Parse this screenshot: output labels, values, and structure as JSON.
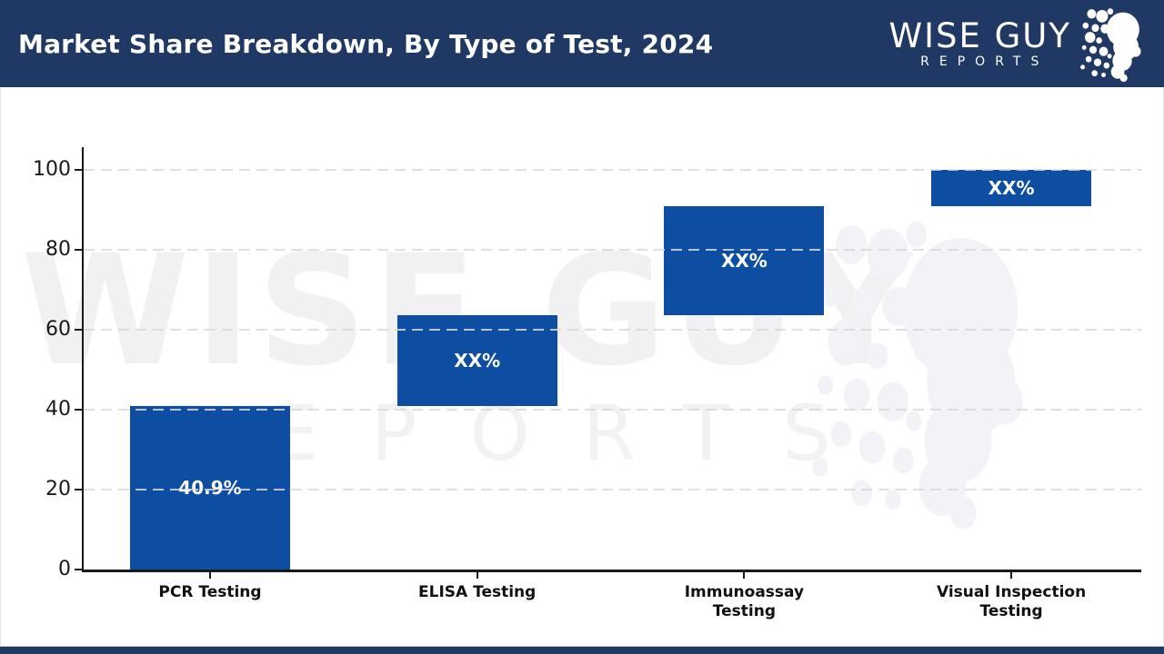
{
  "header": {
    "title": "Market Share Breakdown, By Type of Test, 2024"
  },
  "logo": {
    "line1": "WISE GUY",
    "line2": "REPORTS",
    "icon": "dotted-face-profile-icon"
  },
  "watermark": {
    "line1": "WISE GUY",
    "line2": "REPORTS"
  },
  "colors": {
    "header_bg": "#203864",
    "bar_blue": "#0d4da2",
    "grid_gray": "#d9d9d9",
    "axis_black": "#1a1a1a",
    "watermark_gray": "#f1f1f4"
  },
  "chart_data": {
    "type": "bar",
    "subtype": "waterfall",
    "title": "Market Share Breakdown, By Type of Test, 2024",
    "categories": [
      "PCR Testing",
      "ELISA Testing",
      "Immunoassay Testing",
      "Visual Inspection Testing"
    ],
    "segments": [
      {
        "category": "PCR Testing",
        "category_lines": [
          "PCR Testing"
        ],
        "start": 0,
        "end": 40.9,
        "label": "40.9%"
      },
      {
        "category": "ELISA Testing",
        "category_lines": [
          "ELISA Testing"
        ],
        "start": 40.9,
        "end": 63.6,
        "label": "XX%"
      },
      {
        "category": "Immunoassay Testing",
        "category_lines": [
          "Immunoassay",
          "Testing"
        ],
        "start": 63.6,
        "end": 90.9,
        "label": "XX%"
      },
      {
        "category": "Visual Inspection Testing",
        "category_lines": [
          "Visual Inspection",
          "Testing"
        ],
        "start": 90.9,
        "end": 100,
        "label": "XX%"
      }
    ],
    "yticks": [
      0,
      20,
      40,
      60,
      80,
      100
    ],
    "ylim": [
      0,
      105
    ],
    "xlabel": "",
    "ylabel": "",
    "grid": "dashed-horizontal",
    "legend": "none",
    "bar_value_labels_inside": true
  }
}
